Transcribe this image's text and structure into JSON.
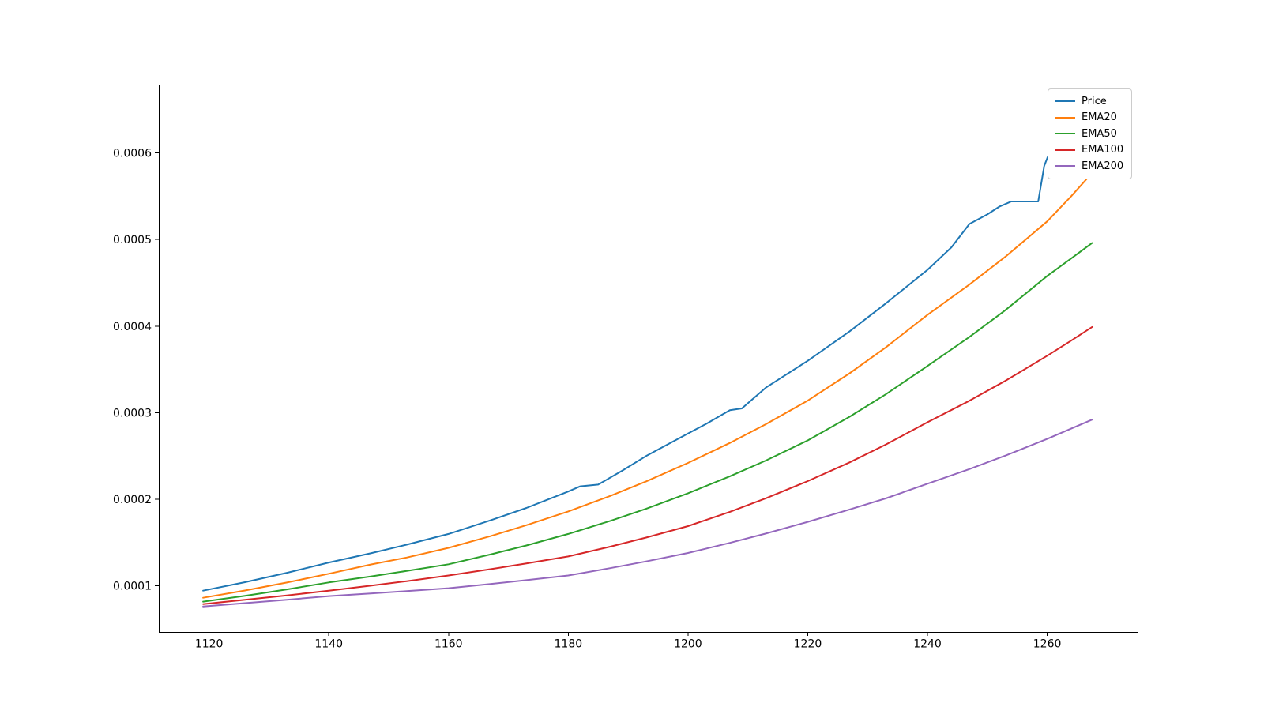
{
  "figure": {
    "background": "#ffffff",
    "spine_color": "#000000",
    "tick_color": "#000000"
  },
  "chart_data": {
    "type": "line",
    "title": "",
    "xlabel": "",
    "ylabel": "",
    "xlim": [
      1111.6,
      1275.1
    ],
    "ylim": [
      4.68e-05,
      0.000679
    ],
    "grid": false,
    "legend": {
      "position": "upper right",
      "entries": [
        "Price",
        "EMA20",
        "EMA50",
        "EMA100",
        "EMA200"
      ]
    },
    "x_tick_labels": [
      "1120",
      "1140",
      "1160",
      "1180",
      "1200",
      "1220",
      "1240",
      "1260"
    ],
    "x_ticks": [
      1120,
      1140,
      1160,
      1180,
      1200,
      1220,
      1240,
      1260
    ],
    "y_tick_labels": [
      "0.0001",
      "0.0002",
      "0.0003",
      "0.0004",
      "0.0005",
      "0.0006"
    ],
    "y_ticks": [
      0.0001,
      0.0002,
      0.0003,
      0.0004,
      0.0005,
      0.0006
    ],
    "series": [
      {
        "name": "Price",
        "color": "#1f77b4",
        "points": [
          [
            1119,
            9.45e-05
          ],
          [
            1126,
            0.0001043
          ],
          [
            1133,
            0.0001151
          ],
          [
            1140,
            0.000127
          ],
          [
            1147,
            0.0001377
          ],
          [
            1153,
            0.0001476
          ],
          [
            1160,
            0.00016
          ],
          [
            1167,
            0.0001757
          ],
          [
            1173,
            0.00019
          ],
          [
            1180,
            0.000209
          ],
          [
            1182,
            0.000215
          ],
          [
            1185,
            0.000217
          ],
          [
            1189,
            0.000233
          ],
          [
            1193,
            0.00025
          ],
          [
            1200,
            0.000276
          ],
          [
            1203,
            0.000287
          ],
          [
            1207,
            0.000303
          ],
          [
            1209,
            0.000305
          ],
          [
            1213,
            0.000329
          ],
          [
            1220,
            0.00036
          ],
          [
            1227,
            0.000394
          ],
          [
            1233,
            0.000426
          ],
          [
            1240,
            0.000465
          ],
          [
            1244,
            0.000491
          ],
          [
            1247,
            0.000518
          ],
          [
            1250,
            0.000529
          ],
          [
            1252,
            0.000538
          ],
          [
            1254,
            0.000544
          ],
          [
            1258.5,
            0.000544
          ],
          [
            1259.5,
            0.000585
          ],
          [
            1260,
            0.000594
          ],
          [
            1262,
            0.000625
          ],
          [
            1264.5,
            0.000645
          ],
          [
            1267.5,
            0.000652
          ]
        ]
      },
      {
        "name": "EMA20",
        "color": "#ff7f0e",
        "points": [
          [
            1119,
            8.63e-05
          ],
          [
            1126,
            9.47e-05
          ],
          [
            1133,
            0.0001039
          ],
          [
            1140,
            0.000114
          ],
          [
            1147,
            0.0001247
          ],
          [
            1153,
            0.0001327
          ],
          [
            1160,
            0.000144
          ],
          [
            1167,
            0.0001575
          ],
          [
            1173,
            0.0001701
          ],
          [
            1180,
            0.000186
          ],
          [
            1187,
            0.0002039
          ],
          [
            1193,
            0.0002207
          ],
          [
            1200,
            0.000242
          ],
          [
            1207,
            0.0002651
          ],
          [
            1213,
            0.0002867
          ],
          [
            1220,
            0.000314
          ],
          [
            1227,
            0.0003456
          ],
          [
            1233,
            0.0003753
          ],
          [
            1240,
            0.000413
          ],
          [
            1247,
            0.000448
          ],
          [
            1253,
            0.00048
          ],
          [
            1260,
            0.000521
          ],
          [
            1264,
            0.00055
          ],
          [
            1267.5,
            0.000577
          ]
        ]
      },
      {
        "name": "EMA50",
        "color": "#2ca02c",
        "points": [
          [
            1119,
            8.18e-05
          ],
          [
            1126,
            8.86e-05
          ],
          [
            1133,
            9.6e-05
          ],
          [
            1140,
            0.000104
          ],
          [
            1147,
            0.0001109
          ],
          [
            1153,
            0.0001172
          ],
          [
            1160,
            0.000125
          ],
          [
            1167,
            0.0001363
          ],
          [
            1173,
            0.0001467
          ],
          [
            1180,
            0.00016
          ],
          [
            1187,
            0.0001751
          ],
          [
            1193,
            0.000189
          ],
          [
            1200,
            0.000207
          ],
          [
            1207,
            0.0002266
          ],
          [
            1213,
            0.0002448
          ],
          [
            1220,
            0.000268
          ],
          [
            1227,
            0.0002954
          ],
          [
            1233,
            0.0003211
          ],
          [
            1240,
            0.000354
          ],
          [
            1247,
            0.0003874
          ],
          [
            1253,
            0.0004184
          ],
          [
            1260,
            0.000458
          ],
          [
            1264,
            0.0004781
          ],
          [
            1267.5,
            0.000496
          ]
        ]
      },
      {
        "name": "EMA100",
        "color": "#d62728",
        "points": [
          [
            1119,
            7.9e-05
          ],
          [
            1126,
            8.39e-05
          ],
          [
            1133,
            8.9e-05
          ],
          [
            1140,
            9.45e-05
          ],
          [
            1147,
            0.0001003
          ],
          [
            1153,
            0.0001055
          ],
          [
            1160,
            0.000112
          ],
          [
            1167,
            0.0001193
          ],
          [
            1173,
            0.0001259
          ],
          [
            1180,
            0.000134
          ],
          [
            1187,
            0.0001453
          ],
          [
            1193,
            0.0001558
          ],
          [
            1200,
            0.000169
          ],
          [
            1207,
            0.0001856
          ],
          [
            1213,
            0.0002012
          ],
          [
            1220,
            0.000221
          ],
          [
            1227,
            0.0002427
          ],
          [
            1233,
            0.0002631
          ],
          [
            1240,
            0.000289
          ],
          [
            1247,
            0.0003138
          ],
          [
            1253,
            0.0003368
          ],
          [
            1260,
            0.0003658
          ],
          [
            1264,
            0.0003832
          ],
          [
            1267.5,
            0.000399
          ]
        ]
      },
      {
        "name": "EMA200",
        "color": "#9467bd",
        "points": [
          [
            1119,
            7.63e-05
          ],
          [
            1126,
            8.01e-05
          ],
          [
            1133,
            8.4e-05
          ],
          [
            1140,
            8.82e-05
          ],
          [
            1147,
            9.13e-05
          ],
          [
            1153,
            9.4e-05
          ],
          [
            1160,
            9.73e-05
          ],
          [
            1167,
            0.0001022
          ],
          [
            1173,
            0.0001066
          ],
          [
            1180,
            0.000112
          ],
          [
            1187,
            0.0001205
          ],
          [
            1193,
            0.0001283
          ],
          [
            1200,
            0.000138
          ],
          [
            1207,
            0.0001497
          ],
          [
            1213,
            0.0001605
          ],
          [
            1220,
            0.000174
          ],
          [
            1227,
            0.0001883
          ],
          [
            1233,
            0.000201
          ],
          [
            1240,
            0.000218
          ],
          [
            1247,
            0.0002349
          ],
          [
            1253,
            0.0002504
          ],
          [
            1260,
            0.0002698
          ],
          [
            1264,
            0.0002816
          ],
          [
            1267.5,
            0.000292
          ]
        ]
      }
    ]
  }
}
